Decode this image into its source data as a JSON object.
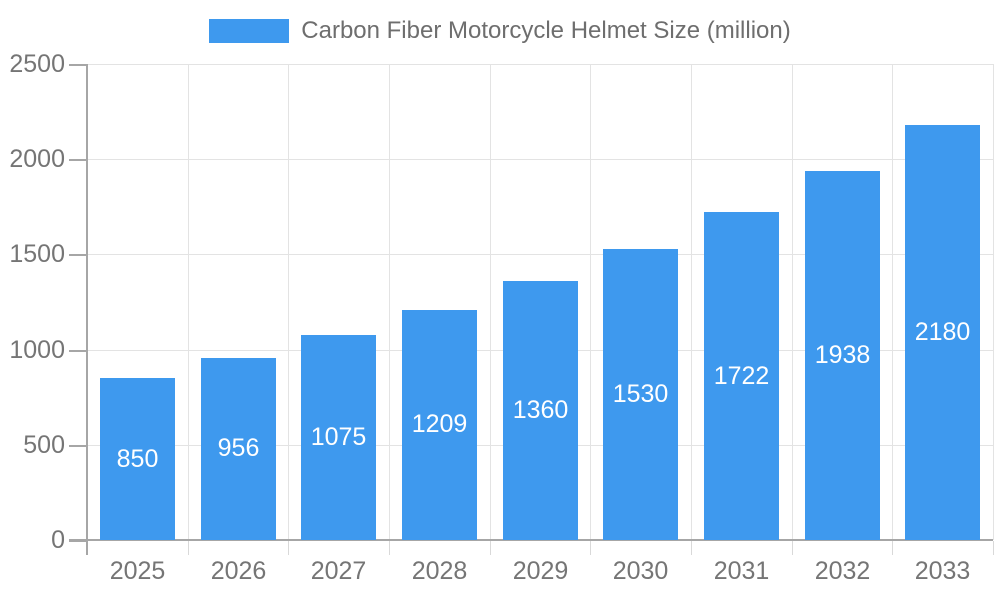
{
  "legend": {
    "label": "Carbon Fiber Motorcycle Helmet Size (million)"
  },
  "chart_data": {
    "type": "bar",
    "title": "Carbon Fiber Motorcycle Helmet Size (million)",
    "categories": [
      "2025",
      "2026",
      "2027",
      "2028",
      "2029",
      "2030",
      "2031",
      "2032",
      "2033"
    ],
    "values": [
      850,
      956,
      1075,
      1209,
      1360,
      1530,
      1722,
      1938,
      2180
    ],
    "xlabel": "",
    "ylabel": "",
    "ylim": [
      0,
      2500
    ],
    "ytick_step": 500,
    "grid": true,
    "legend_position": "top-center",
    "value_labels": "inside-center",
    "colors": {
      "bar": "#3E99EE",
      "grid": "#e3e3e3",
      "axis": "#a6a6a6",
      "x_tick": "#d9d9d9",
      "axis_label": "#757575",
      "title": "#6e6e6e",
      "value_label": "#ffffff",
      "background": "#ffffff"
    }
  }
}
